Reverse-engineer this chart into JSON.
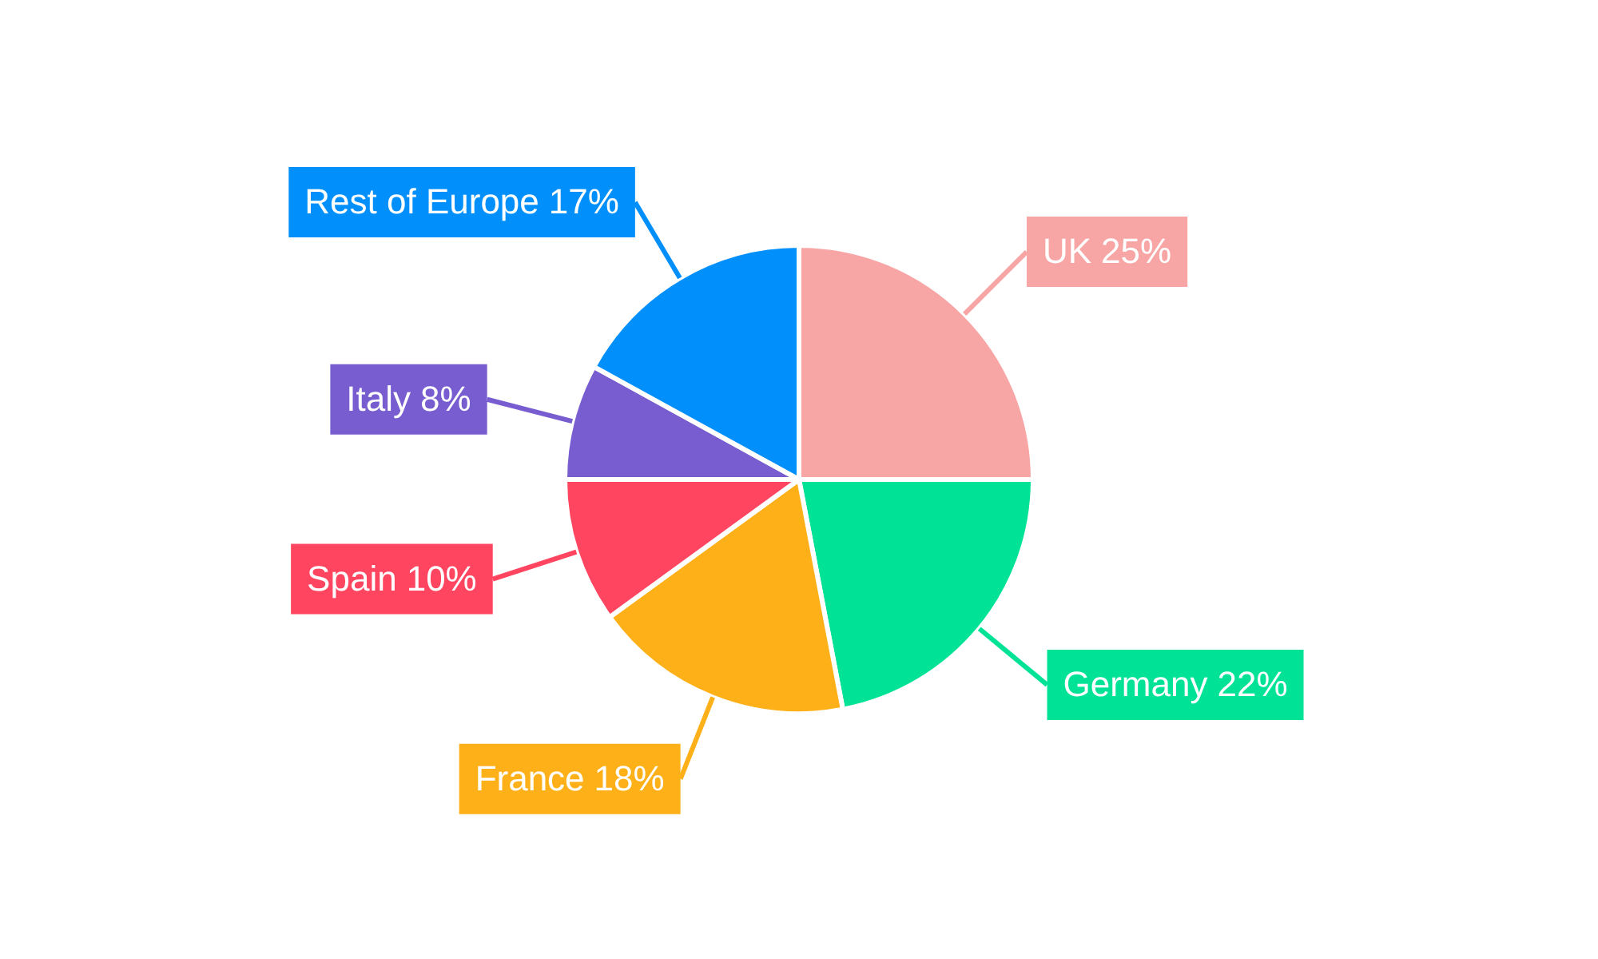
{
  "chart_data": {
    "type": "pie",
    "categories": [
      "UK",
      "Germany",
      "France",
      "Spain",
      "Italy",
      "Rest of Europe"
    ],
    "values": [
      25,
      22,
      18,
      10,
      8,
      17
    ],
    "colors": [
      "#f8a5a5",
      "#00e396",
      "#feb019",
      "#ff4560",
      "#775dd0",
      "#008ffb"
    ],
    "value_labels": [
      "25%",
      "22%",
      "18%",
      "10%",
      "8%",
      "17%"
    ],
    "legend": false
  }
}
